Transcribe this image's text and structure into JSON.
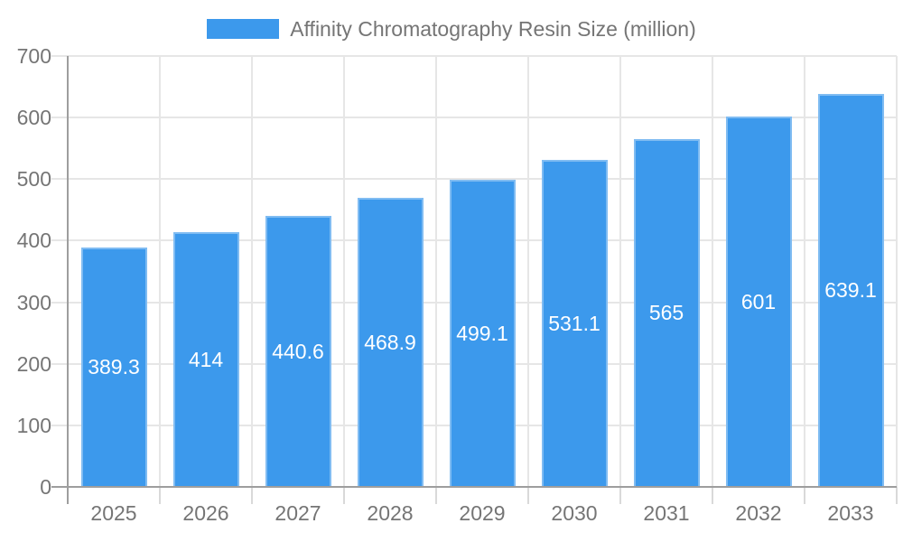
{
  "legend": {
    "label": "Affinity Chromatography Resin Size (million)"
  },
  "chart_data": {
    "type": "bar",
    "title": "Affinity Chromatography Resin Size (million)",
    "categories": [
      "2025",
      "2026",
      "2027",
      "2028",
      "2029",
      "2030",
      "2031",
      "2032",
      "2033"
    ],
    "values": [
      389.3,
      414,
      440.6,
      468.9,
      499.1,
      531.1,
      565,
      601,
      639.1
    ],
    "value_labels": [
      "389.3",
      "414",
      "440.6",
      "468.9",
      "499.1",
      "531.1",
      "565",
      "601",
      "639.1"
    ],
    "xlabel": "",
    "ylabel": "",
    "ylim": [
      0,
      700
    ],
    "y_ticks": [
      0,
      100,
      200,
      300,
      400,
      500,
      600,
      700
    ],
    "grid": true,
    "legend_position": "top",
    "bar_color": "#3C99EC",
    "gridline_color": "#E6E6E6",
    "axis_color": "#9E9E9E",
    "tick_color": "#D9D9D9",
    "label_color": "#757575",
    "value_label_color": "#FFFFFF"
  }
}
